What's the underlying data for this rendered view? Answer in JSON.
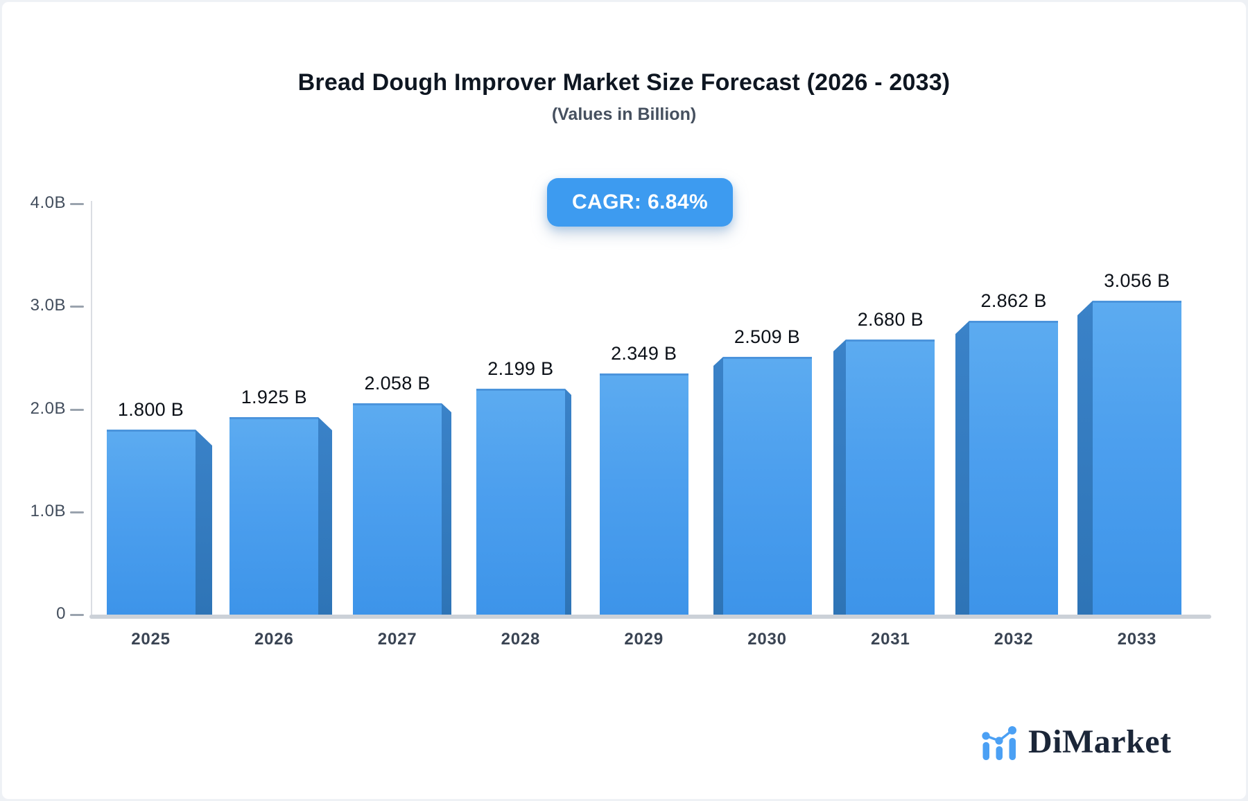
{
  "page": {
    "title": "Bread Dough Improver Market Size Forecast (2026 - 2033)",
    "subtitle": "(Values in Billion)",
    "badge_label": "CAGR: 6.84%",
    "brand_name": "DiMarket"
  },
  "chart_data": {
    "type": "bar",
    "title": "Bread Dough Improver Market Size Forecast (2026 - 2033)",
    "subtitle": "(Values in Billion)",
    "annotation": "CAGR: 6.84%",
    "categories": [
      "2025",
      "2026",
      "2027",
      "2028",
      "2029",
      "2030",
      "2031",
      "2032",
      "2033"
    ],
    "values": [
      1.8,
      1.925,
      2.058,
      2.199,
      2.349,
      2.509,
      2.68,
      2.862,
      3.056
    ],
    "value_labels": [
      "1.800 B",
      "1.925 B",
      "2.058 B",
      "2.199 B",
      "2.349 B",
      "2.509 B",
      "2.680 B",
      "2.862 B",
      "3.056 B"
    ],
    "unit": "Billion",
    "xlabel": "",
    "ylabel": "",
    "ylim": [
      0,
      4
    ],
    "y_ticks": [
      {
        "value": 4,
        "label": "4.0B"
      },
      {
        "value": 3,
        "label": "3.0B"
      },
      {
        "value": 2,
        "label": "2.0B"
      },
      {
        "value": 1,
        "label": "1.0B"
      },
      {
        "value": 0,
        "label": "0"
      }
    ],
    "grid": false,
    "legend": false,
    "colors": {
      "bar_face_top": "#5cabf0",
      "bar_face_bottom": "#3d94e9",
      "bar_side": "#2e74b6",
      "badge_background": "#3d9bf0",
      "badge_text": "#ffffff",
      "axis_line": "#ccd1d8",
      "tick_text": "#424d5c",
      "category_text": "#3a4453",
      "value_text": "#0c1118",
      "brand_blue": "#4ba0f4",
      "brand_navy": "#1b2638"
    }
  }
}
